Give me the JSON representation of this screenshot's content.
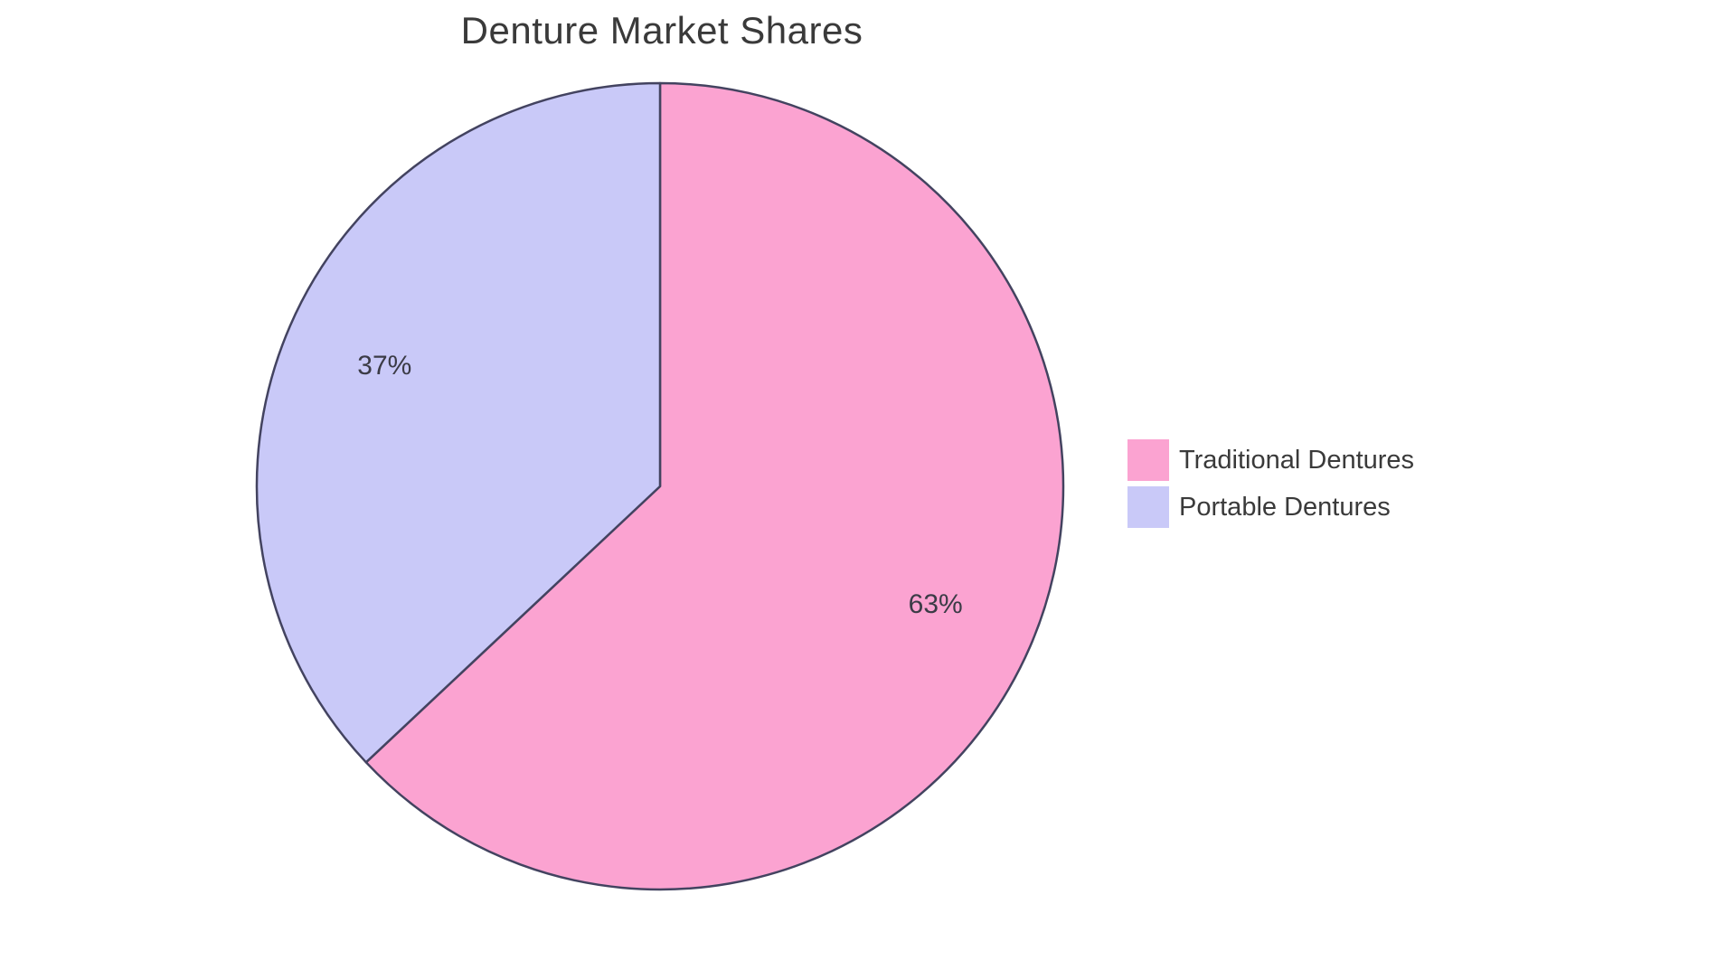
{
  "page": {
    "background_color": "#ffffff"
  },
  "chart_data": {
    "type": "pie",
    "title": "Denture Market Shares",
    "slices": [
      {
        "label": "Traditional Dentures",
        "value": 63,
        "percent_label": "63%",
        "color": "#FBA3D1"
      },
      {
        "label": "Portable Dentures",
        "value": 37,
        "percent_label": "37%",
        "color": "#C9C9F8"
      }
    ],
    "start_angle_deg": -90,
    "direction": "clockwise",
    "stroke_color": "#434360",
    "stroke_width": 2.5,
    "percent_label_color": "#3b3b46",
    "title_color": "#3a3a3a",
    "legend_position": "right",
    "legend_text_color": "#3a3a3a"
  }
}
